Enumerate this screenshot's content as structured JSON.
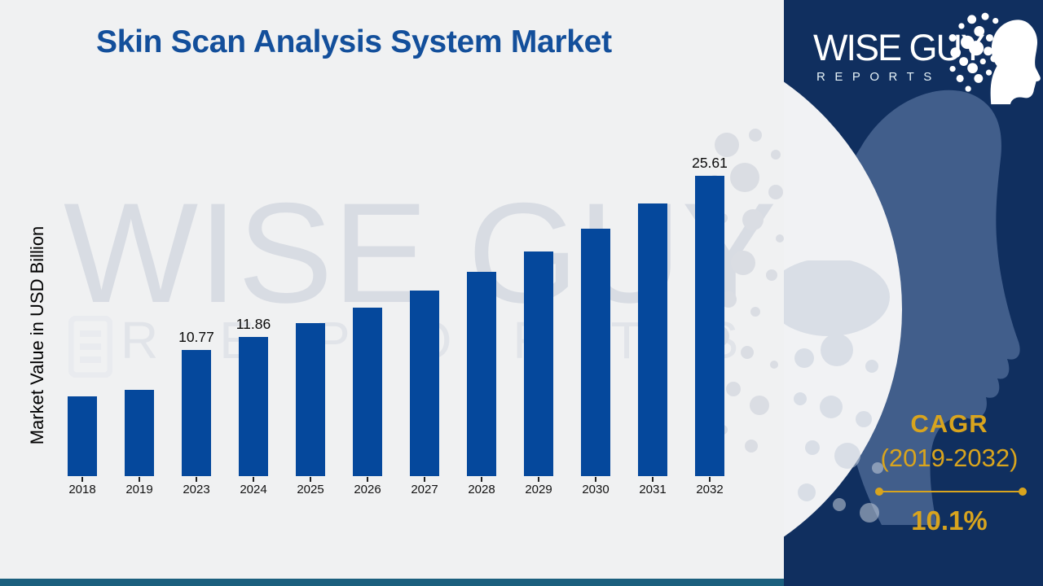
{
  "title": "Skin Scan Analysis System Market",
  "brand": {
    "watermark_line1": "WISE GUY",
    "watermark_line2": "REPORTS",
    "logo_line1": "WISE GUY",
    "logo_line2": "REPORTS"
  },
  "cagr": {
    "heading": "CAGR",
    "range": "(2019-2032)",
    "value": "10.1%"
  },
  "colors": {
    "background": "#f0f1f2",
    "bar_blue": "#05489c",
    "title_blue": "#134f9b",
    "panel_navy": "#102f5f",
    "accent_gold": "#d8a41e",
    "teal_strip": "#1b5f7e",
    "watermark_gray": "#d8dce3"
  },
  "chart_data": {
    "type": "bar",
    "title": "Skin Scan Analysis System Market",
    "xlabel": "",
    "ylabel": "Market Value in USD Billion",
    "unit": "USD Billion",
    "categories": [
      "2018",
      "2019",
      "2023",
      "2024",
      "2025",
      "2026",
      "2027",
      "2028",
      "2029",
      "2030",
      "2031",
      "2032"
    ],
    "values": [
      6.8,
      7.33,
      10.77,
      11.86,
      13.06,
      14.38,
      15.83,
      17.43,
      19.19,
      21.13,
      23.26,
      25.61
    ],
    "bar_value_labels": [
      "",
      "",
      "10.77",
      "11.86",
      "",
      "",
      "",
      "",
      "",
      "",
      "",
      "25.61"
    ],
    "ylim": [
      0,
      27
    ],
    "grid": false,
    "legend": false
  }
}
